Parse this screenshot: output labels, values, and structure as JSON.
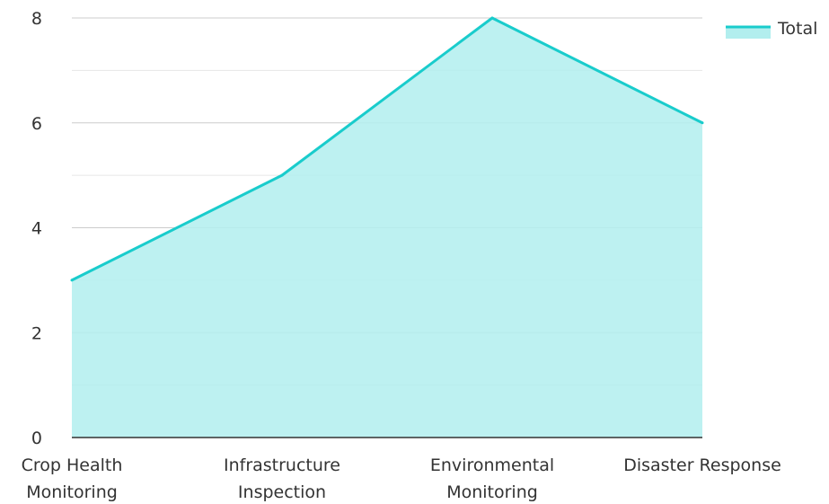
{
  "chart_data": {
    "type": "area",
    "categories": [
      [
        "Crop Health",
        "Monitoring"
      ],
      [
        "Infrastructure",
        "Inspection"
      ],
      [
        "Environmental",
        "Monitoring"
      ],
      [
        "Disaster Response"
      ]
    ],
    "series": [
      {
        "name": "Total",
        "values": [
          3,
          5,
          8,
          6
        ]
      }
    ],
    "ylim": [
      0,
      8
    ],
    "yticks": [
      0,
      2,
      4,
      6,
      8
    ],
    "grid": true,
    "legend_position": "top-right",
    "colors": {
      "line": "#19cccc",
      "fill": "#b2eeee",
      "grid_major": "#cccccc",
      "grid_minor": "#e6e6e6"
    }
  }
}
